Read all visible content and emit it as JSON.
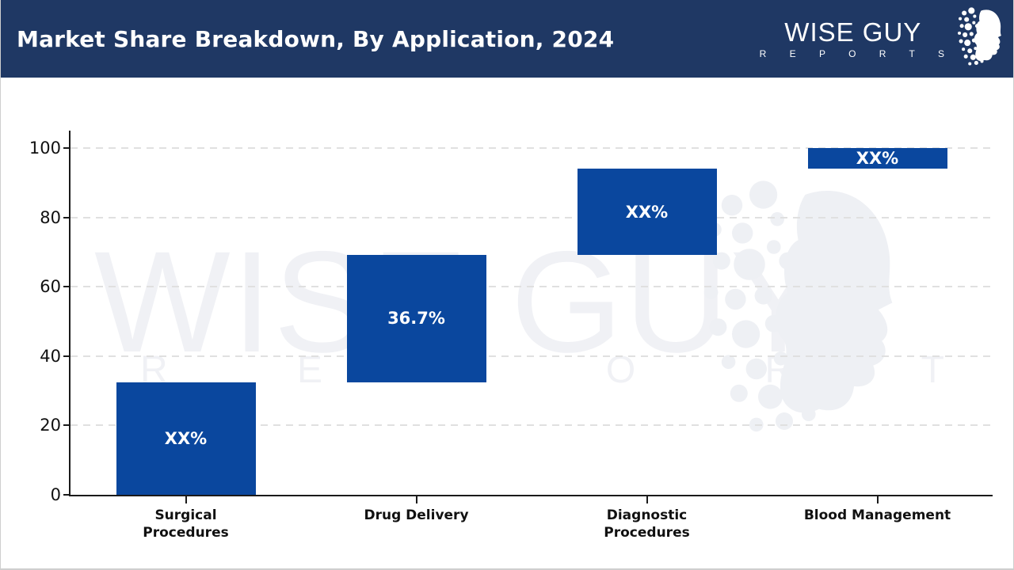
{
  "header": {
    "title": "Market Share Breakdown, By Application, 2024",
    "bg_color": "#1f3864",
    "logo": {
      "name": "WISE GUY",
      "sub": "R E P O R T S"
    }
  },
  "watermark": {
    "text1": "WISE GUY",
    "text2": "R E P O R T S"
  },
  "chart_data": {
    "type": "bar",
    "subtype": "waterfall",
    "title": "Market Share Breakdown, By Application, 2024",
    "categories": [
      "Surgical Procedures",
      "Drug Delivery",
      "Diagnostic Procedures",
      "Blood Management"
    ],
    "tick_lines": [
      [
        "Surgical",
        "Procedures"
      ],
      [
        "Drug Delivery"
      ],
      [
        "Diagnostic",
        "Procedures"
      ],
      [
        "Blood Management"
      ]
    ],
    "segments": [
      {
        "category": "Surgical Procedures",
        "start": 0,
        "end": 32.5,
        "label": "XX%"
      },
      {
        "category": "Drug Delivery",
        "start": 32.5,
        "end": 69.2,
        "label": "36.7%"
      },
      {
        "category": "Diagnostic Procedures",
        "start": 69.2,
        "end": 94.0,
        "label": "XX%"
      },
      {
        "category": "Blood Management",
        "start": 94.0,
        "end": 100.0,
        "label": "XX%"
      }
    ],
    "xlabel": "",
    "ylabel": "",
    "ylim": [
      0,
      100
    ],
    "yticks": [
      0,
      20,
      40,
      60,
      80,
      100
    ],
    "grid": {
      "horizontal": true,
      "style": "dashed",
      "color": "#e0e0e0"
    },
    "legend": "none",
    "bar_color": "#0a479e",
    "bar_label_color": "#ffffff",
    "axis_color": "#1a1a1a",
    "tick_label_color": "#111111",
    "plot_bg": "#ffffff"
  }
}
